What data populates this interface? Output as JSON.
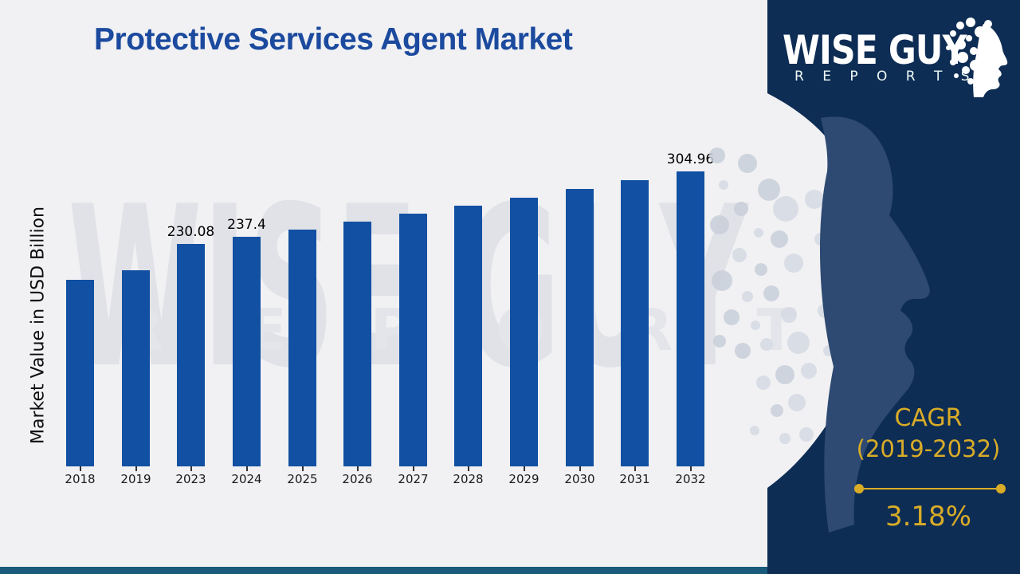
{
  "title": "Protective Services Agent Market",
  "y_axis_label": "Market Value in USD Billion",
  "watermark": {
    "line1": "WISE GUY",
    "line2": "R E P O R T S"
  },
  "logo": {
    "name_line": "WISE GUY",
    "reports_line": "R E P O R T S"
  },
  "cagr": {
    "label": "CAGR",
    "range": "(2019-2032)",
    "value": "3.18%"
  },
  "chart_data": {
    "type": "bar",
    "title": "Protective Services Agent Market",
    "xlabel": "",
    "ylabel": "Market Value in USD Billion",
    "unit": "USD Billion",
    "categories": [
      "2018",
      "2019",
      "2023",
      "2024",
      "2025",
      "2026",
      "2027",
      "2028",
      "2029",
      "2030",
      "2031",
      "2032"
    ],
    "values": [
      192.8,
      203.0,
      230.08,
      237.4,
      244.95,
      252.74,
      260.78,
      269.07,
      277.63,
      286.46,
      295.57,
      304.96
    ],
    "labeled_points": {
      "2023": "230.08",
      "2024": "237.4",
      "2032": "304.96"
    },
    "ylim": [
      0,
      330
    ],
    "grid": false,
    "legend": "none",
    "bar_color": "#1150a2"
  },
  "colors": {
    "background": "#f1f1f3",
    "bar": "#1150a2",
    "title_text": "#1b4a9e",
    "navy_panel": "#0e2d55",
    "face_silhouette": "#2e4a72",
    "gold_accent": "#d9ac27",
    "bottom_strip": "#1a5a7a",
    "watermark": "#e0e2e7"
  }
}
